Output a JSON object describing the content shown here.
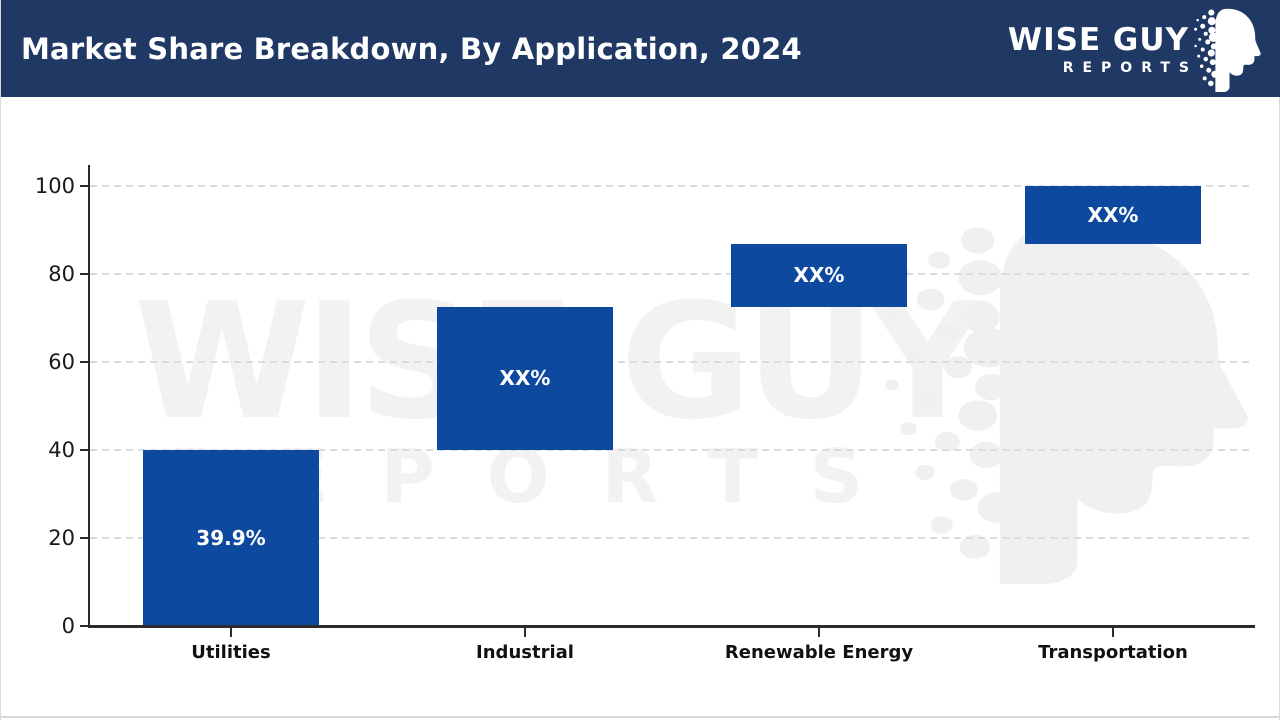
{
  "header": {
    "title": "Market Share Breakdown, By Application, 2024",
    "background_color": "#1f3864",
    "logo": {
      "wordmark": "WISE GUY",
      "subtext": "REPORTS",
      "head_icon": "dotted-head-profile"
    }
  },
  "watermark": {
    "wordmark": "WISE GUY",
    "subtext": "REPORTS",
    "head_icon": "dotted-head-profile"
  },
  "chart_data": {
    "type": "bar",
    "subtype": "waterfall",
    "title": "Market Share Breakdown, By Application, 2024",
    "categories": [
      "Utilities",
      "Industrial",
      "Renewable Energy",
      "Transportation"
    ],
    "series": [
      {
        "name": "Market Share",
        "segments": [
          {
            "category": "Utilities",
            "start": 0,
            "end": 39.9,
            "label": "39.9%"
          },
          {
            "category": "Industrial",
            "start": 39.9,
            "end": 72.6,
            "label": "XX%"
          },
          {
            "category": "Renewable Energy",
            "start": 72.6,
            "end": 86.8,
            "label": "XX%"
          },
          {
            "category": "Transportation",
            "start": 86.8,
            "end": 100,
            "label": "XX%"
          }
        ]
      }
    ],
    "xlabel": "",
    "ylabel": "",
    "y_ticks": [
      0,
      20,
      40,
      60,
      80,
      100
    ],
    "ylim": [
      0,
      105
    ],
    "bar_color": "#0d4a9f",
    "bar_label_color": "#ffffff",
    "grid": {
      "horizontal": true,
      "style": "dashed",
      "color": "#dcdcdc"
    },
    "legend": "none"
  }
}
